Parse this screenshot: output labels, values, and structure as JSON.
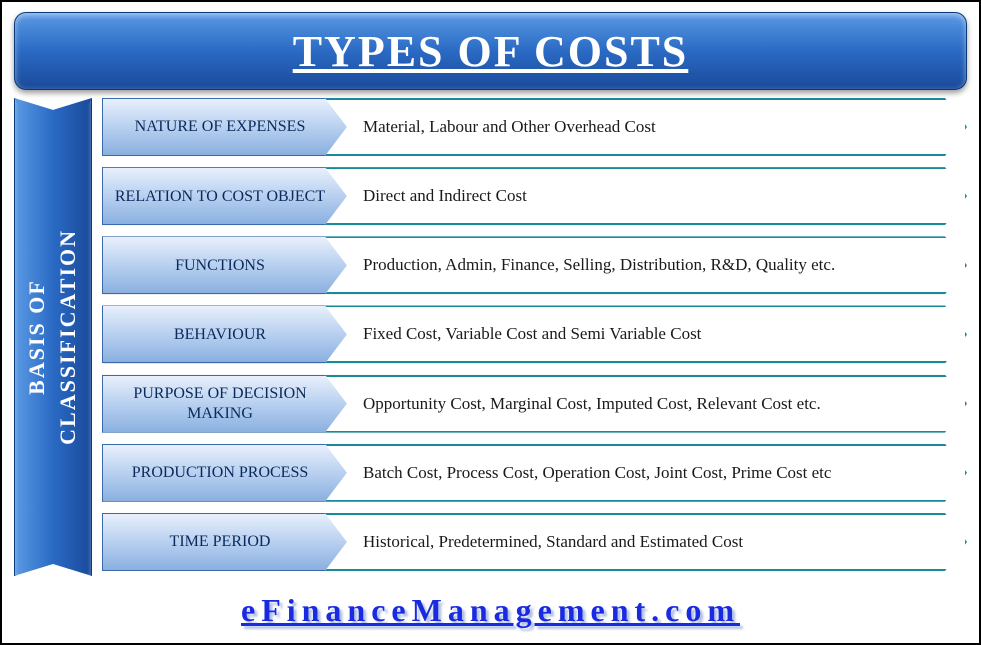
{
  "header": {
    "title": "TYPES OF COSTS",
    "bg_gradient_top": "#5a9ae4",
    "bg_gradient_mid": "#2a6ac4",
    "bg_gradient_bottom": "#1a4a9a",
    "text_color": "#ffffff"
  },
  "sidebar": {
    "label": "BASIS OF\nCLASSIFICATION",
    "bg_gradient_top": "#5a9ae4",
    "bg_gradient_mid": "#2a6ac4",
    "bg_gradient_bottom": "#1a4a9a",
    "text_color": "#ffffff"
  },
  "rows": [
    {
      "category": "NATURE OF EXPENSES",
      "detail": "Material, Labour and Other Overhead Cost"
    },
    {
      "category": "RELATION TO COST OBJECT",
      "detail": "Direct and Indirect Cost"
    },
    {
      "category": "FUNCTIONS",
      "detail": "Production, Admin, Finance, Selling,  Distribution, R&D, Quality etc."
    },
    {
      "category": "BEHAVIOUR",
      "detail": "Fixed Cost, Variable Cost and Semi Variable Cost"
    },
    {
      "category": "PURPOSE OF DECISION MAKING",
      "detail": "Opportunity Cost, Marginal Cost, Imputed Cost, Relevant Cost etc."
    },
    {
      "category": "PRODUCTION PROCESS",
      "detail": "Batch Cost, Process Cost, Operation Cost, Joint Cost, Prime Cost etc"
    },
    {
      "category": "TIME PERIOD",
      "detail": "Historical, Predetermined, Standard and Estimated Cost"
    }
  ],
  "row_style": {
    "category_gradient_top": "#e8f0fc",
    "category_gradient_mid": "#b8d0f0",
    "category_gradient_bottom": "#8ab0e0",
    "category_text_color": "#0a2a5a",
    "detail_bg": "#ffffff",
    "detail_border": "#1a8a9a",
    "detail_text_color": "#1a1a1a"
  },
  "footer": {
    "text": "eFinanceManagement.com",
    "color": "#1a2ae0"
  }
}
